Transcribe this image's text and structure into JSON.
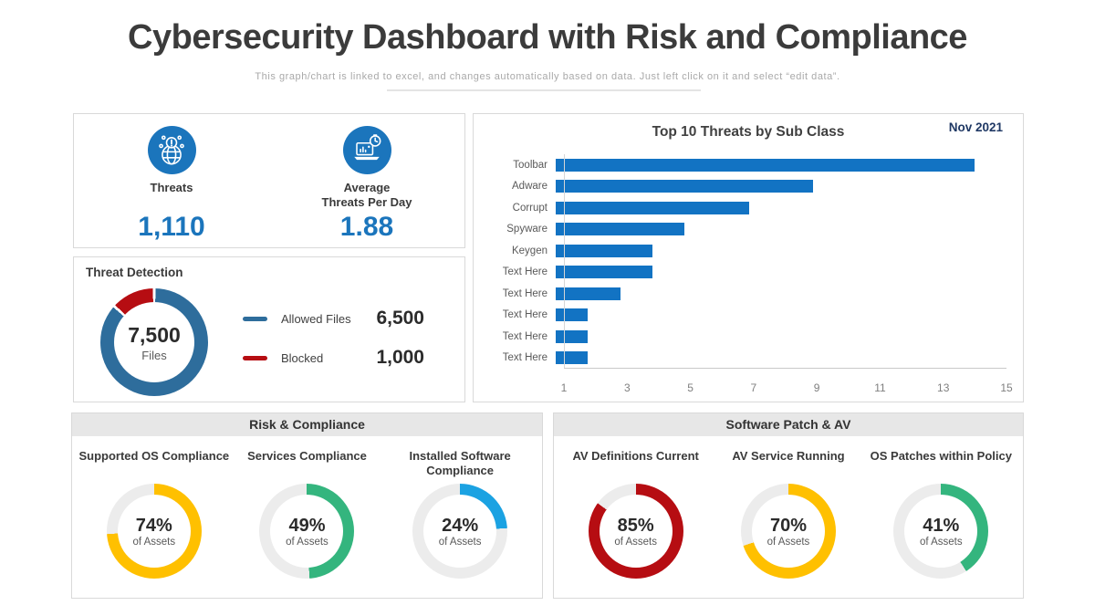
{
  "theme": {
    "accent_blue": "#1b75bc",
    "bar_blue": "#1273c3",
    "steel_blue": "#2e6d9c",
    "red": "#b60d12",
    "yellow": "#ffc000",
    "green": "#34b57e",
    "cyan": "#1ba2e2",
    "track_gray": "#ececec",
    "navy": "#1f3864"
  },
  "page": {
    "title": "Cybersecurity Dashboard with Risk and Compliance",
    "subtitle": "This graph/chart is linked to excel, and changes automatically based on data. Just left click on it and select “edit data”."
  },
  "stats": {
    "cards": [
      {
        "icon": "globe-alert-icon",
        "label": "Threats",
        "value": "1,110"
      },
      {
        "icon": "laptop-timer-icon",
        "label_line1": "Average",
        "label": "Average Threats Per Day",
        "label_line2": "Threats Per Day",
        "value": "1.88"
      }
    ]
  },
  "threat_detection": {
    "title": "Threat Detection",
    "donut": {
      "center_value": "7,500",
      "center_label": "Files",
      "segments": [
        {
          "label": "Allowed Files",
          "value": "6,500",
          "color": "#2e6d9c",
          "degrees": 312
        },
        {
          "label": "Blocked",
          "value": "1,000",
          "color": "#b60d12",
          "degrees": 48
        }
      ]
    }
  },
  "chart_data": {
    "type": "bar",
    "orientation": "horizontal",
    "title": "Top 10 Threats by Sub Class",
    "period_label": "Nov 2021",
    "categories": [
      "Toolbar",
      "Adware",
      "Corrupt",
      "Spyware",
      "Keygen",
      "Text Here",
      "Text Here",
      "Text Here",
      "Text Here",
      "Text Here"
    ],
    "values": [
      14,
      9,
      7,
      5,
      4,
      4,
      3,
      2,
      2,
      2
    ],
    "xlim": [
      1,
      15
    ],
    "xticks": [
      1,
      3,
      5,
      7,
      9,
      11,
      13,
      15
    ],
    "bar_color": "#1273c3",
    "grid": false,
    "legend": false
  },
  "risk_compliance": {
    "title": "Risk & Compliance",
    "gauges": [
      {
        "label": "Supported OS Compliance",
        "percent": 74,
        "unit": "of Assets",
        "color": "#ffc000"
      },
      {
        "label": "Services Compliance",
        "percent": 49,
        "unit": "of Assets",
        "color": "#34b57e"
      },
      {
        "label": "Installed Software Compliance",
        "percent": 24,
        "unit": "of Assets",
        "color": "#1ba2e2"
      }
    ]
  },
  "software_patch": {
    "title": "Software Patch & AV",
    "gauges": [
      {
        "label": "AV Definitions Current",
        "percent": 85,
        "unit": "of Assets",
        "color": "#b60d12"
      },
      {
        "label": "AV Service Running",
        "percent": 70,
        "unit": "of Assets",
        "color": "#ffc000"
      },
      {
        "label": "OS Patches within Policy",
        "percent": 41,
        "unit": "of Assets",
        "color": "#34b57e"
      }
    ]
  }
}
